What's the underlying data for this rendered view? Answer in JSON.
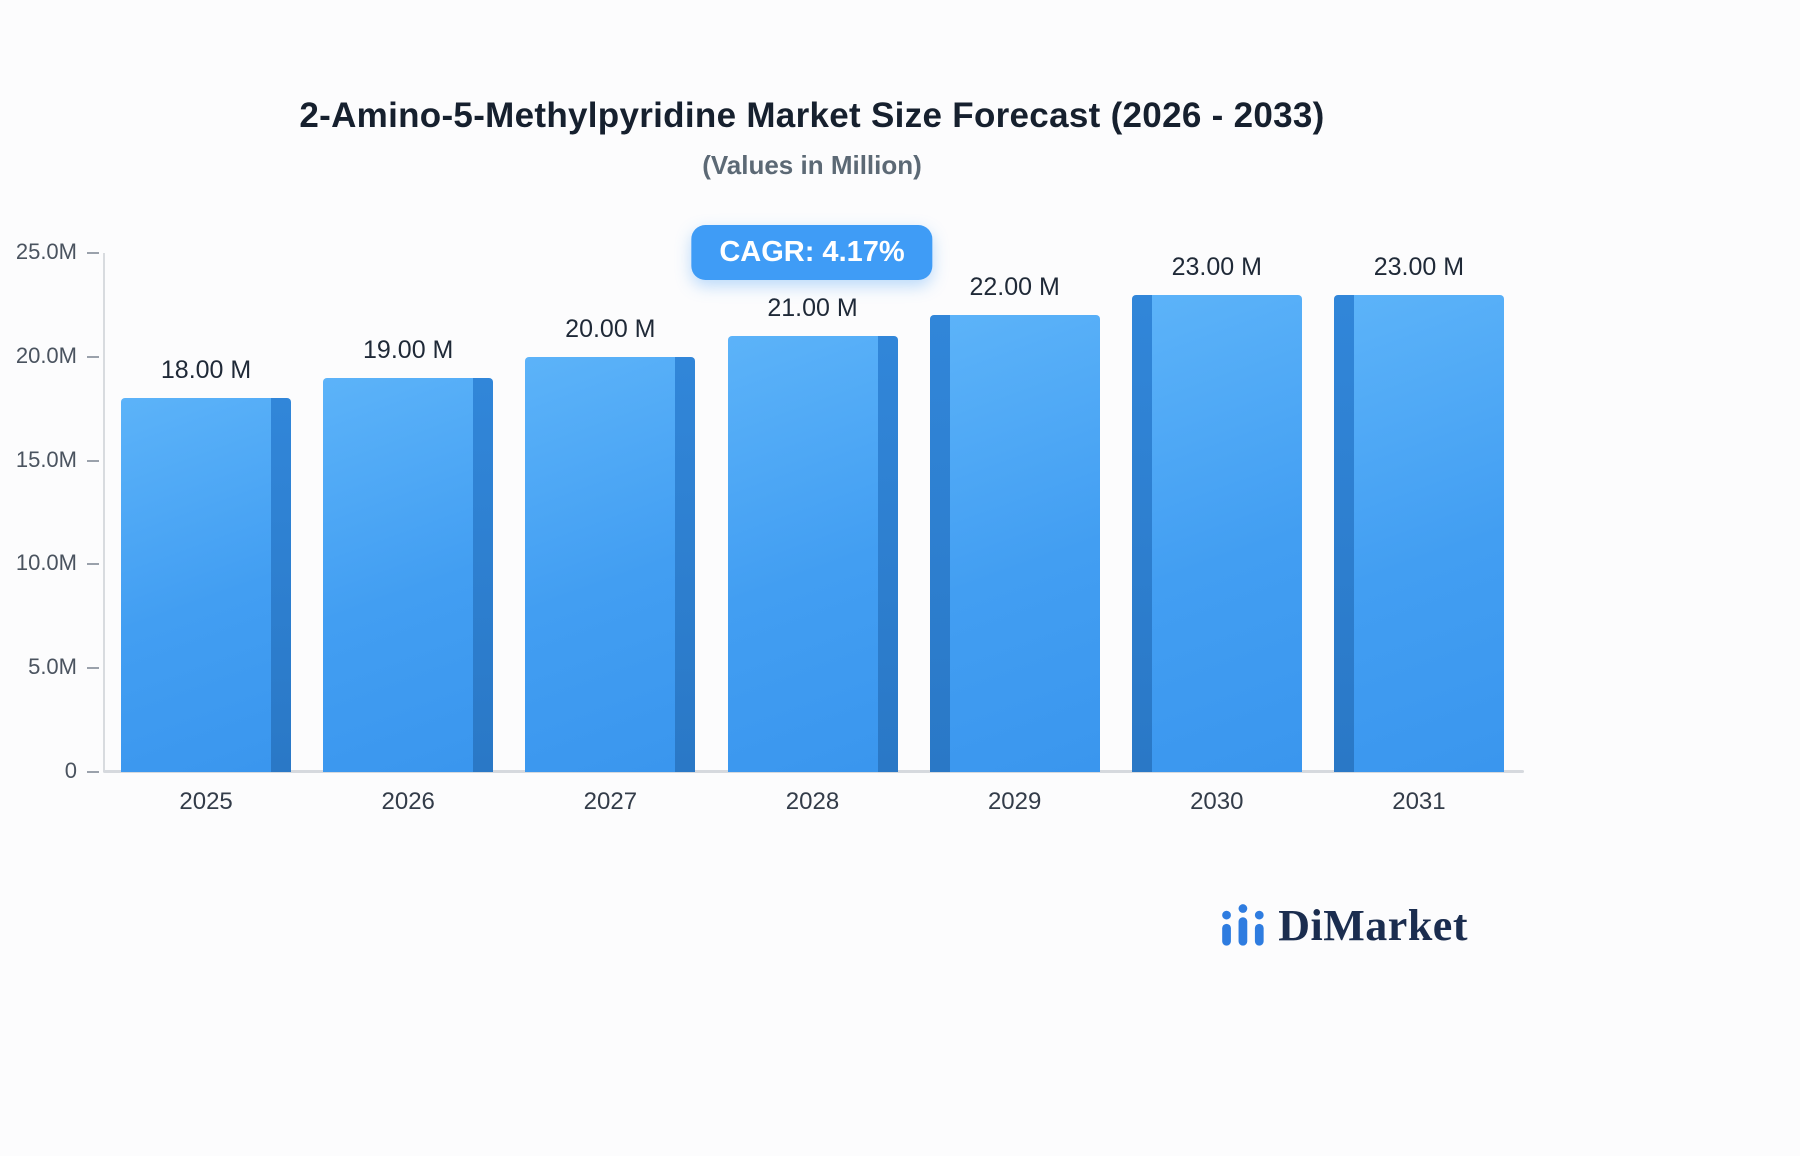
{
  "chart_data": {
    "type": "bar",
    "title": "2-Amino-5-Methylpyridine Market Size Forecast (2026 - 2033)",
    "subtitle": "(Values in Million)",
    "annotation": "CAGR: 4.17%",
    "categories": [
      "2025",
      "2026",
      "2027",
      "2028",
      "2029",
      "2030",
      "2031"
    ],
    "values": [
      18,
      19,
      20,
      21,
      22,
      23,
      23
    ],
    "value_labels": [
      "18.00 M",
      "19.00 M",
      "20.00 M",
      "21.00 M",
      "22.00 M",
      "23.00 M",
      "23.00 M"
    ],
    "unit": "Million",
    "xlabel": "",
    "ylabel": "",
    "ylim": [
      0,
      25
    ],
    "yticks": [
      0,
      5,
      10,
      15,
      20,
      25
    ],
    "ytick_labels": [
      "0",
      "5.0M",
      "10.0M",
      "15.0M",
      "20.0M",
      "25.0M"
    ],
    "grid": false,
    "legend": false,
    "colors": {
      "bar_face": "#3E9CF3",
      "bar_side": "#2B7CC9",
      "badge_bg": "#3F9CF6",
      "badge_text": "#FFFFFF"
    }
  },
  "branding": {
    "logo_text": "DiMarket",
    "logo_text_color": "#1B2D4F",
    "logo_icon_color": "#2E7CE0"
  }
}
